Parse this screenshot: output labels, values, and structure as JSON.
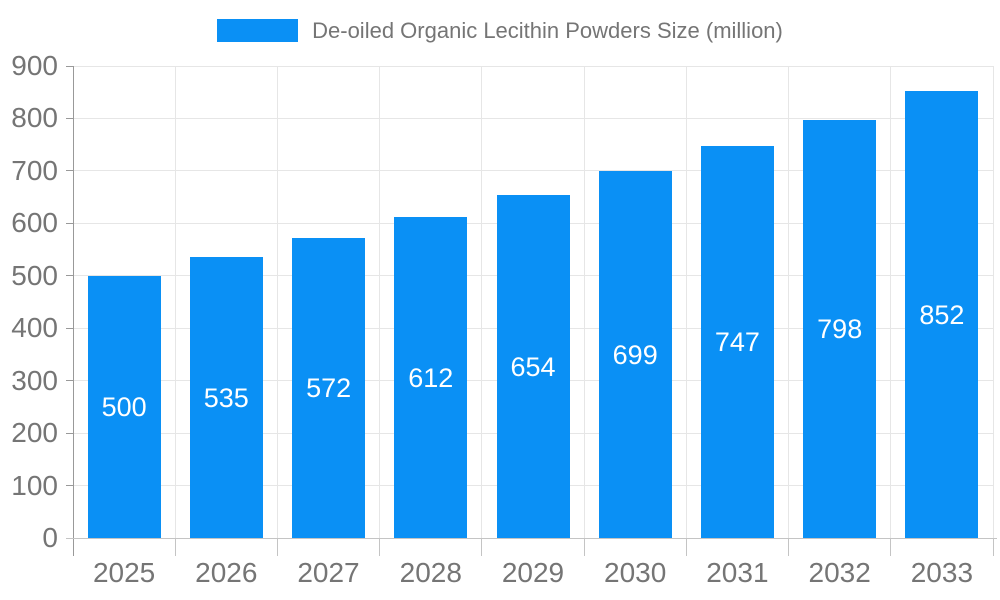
{
  "legend": {
    "label": "De-oiled Organic Lecithin Powders Size (million)"
  },
  "chart_data": {
    "type": "bar",
    "title": "De-oiled Organic Lecithin Powders Size (million)",
    "categories": [
      "2025",
      "2026",
      "2027",
      "2028",
      "2029",
      "2030",
      "2031",
      "2032",
      "2033"
    ],
    "values": [
      500,
      535,
      572,
      612,
      654,
      699,
      747,
      798,
      852
    ],
    "series": [
      {
        "name": "De-oiled Organic Lecithin Powders Size (million)",
        "values": [
          500,
          535,
          572,
          612,
          654,
          699,
          747,
          798,
          852
        ]
      }
    ],
    "xlabel": "",
    "ylabel": "",
    "ylim": [
      0,
      900
    ],
    "ytick_step": 100,
    "yticks": [
      0,
      100,
      200,
      300,
      400,
      500,
      600,
      700,
      800,
      900
    ],
    "grid": true,
    "legend_position": "top-center",
    "value_label_position": "inside-center"
  },
  "colors": {
    "bar": "#0a90f5",
    "value_label": "#ffffff",
    "axis_label": "#757575",
    "legend_text": "#757575",
    "gridline": "#e6e6e6",
    "axis_line": "#999999",
    "tick_line": "#c4c4c4",
    "background": "#ffffff"
  }
}
